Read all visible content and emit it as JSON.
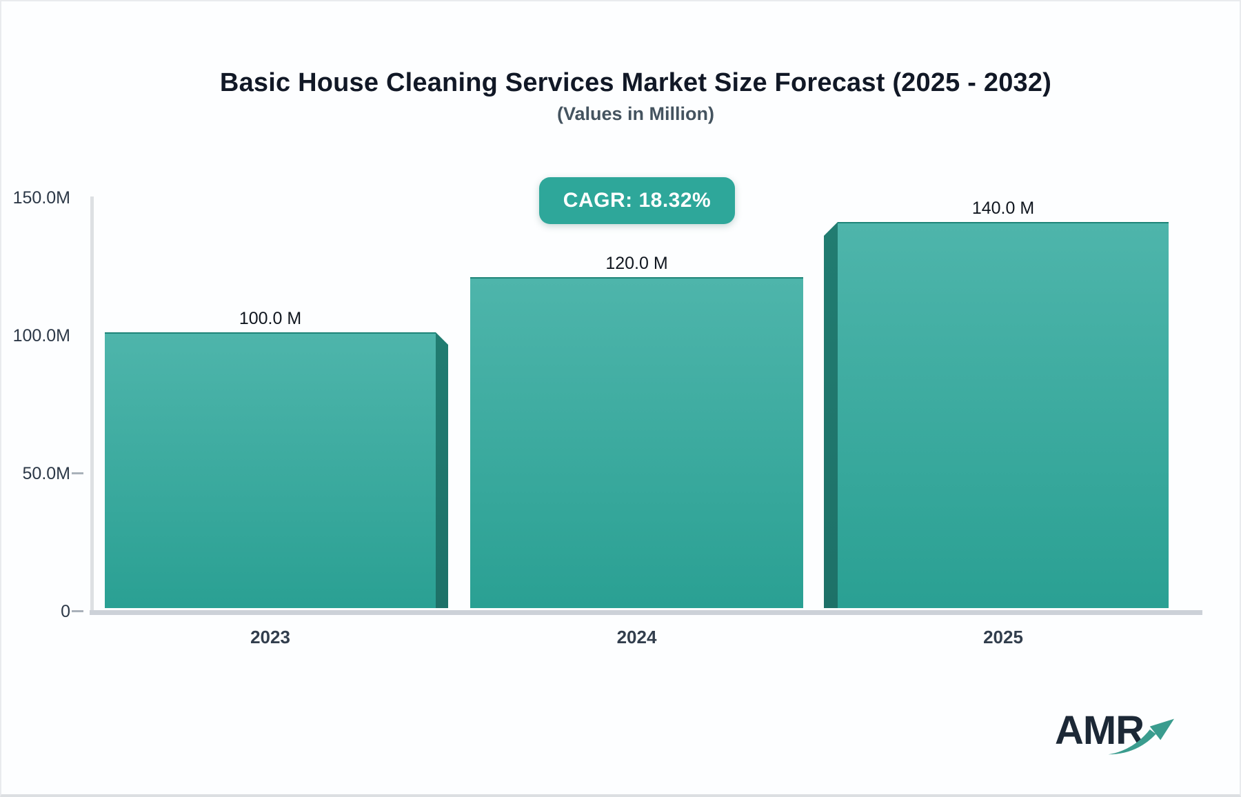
{
  "header": {
    "title": "Basic House Cleaning Services Market Size Forecast (2025 - 2032)",
    "subtitle": "(Values in Million)"
  },
  "badge": {
    "label": "CAGR: 18.32%"
  },
  "logo": {
    "text": "AMR",
    "arrow_icon": "growth-arrow-icon"
  },
  "colors": {
    "bar_top": "#4eb5ab",
    "bar_bottom": "#2aa093",
    "bar_side": "#217c71",
    "bar_side_deep": "#1e7168",
    "bar_edge": "rgba(24,117,106,0.65)",
    "badge_bg": "#2ea79a",
    "badge_text": "#ffffff",
    "logo_arrow": "#3a9c8e",
    "axis_line": "#dde0e3",
    "baseline": "#ccd1d8"
  },
  "chart_data": {
    "type": "bar",
    "title": "Basic House Cleaning Services Market Size Forecast (2025 - 2032)",
    "subtitle": "(Values in Million)",
    "categories": [
      "2023",
      "2024",
      "2025"
    ],
    "values": [
      100.0,
      120.0,
      140.0
    ],
    "value_labels": [
      "100.0 M",
      "120.0 M",
      "140.0 M"
    ],
    "unit": "Million",
    "annotation": "CAGR: 18.32%",
    "xlabel": "",
    "ylabel": "",
    "ylim": [
      0,
      150
    ],
    "y_ticks": [
      "150.0M",
      "100.0M",
      "50.0M",
      "0"
    ],
    "y_tick_values": [
      150,
      100,
      50,
      0
    ],
    "grid": false,
    "legend": false,
    "style": "3d-columns"
  }
}
